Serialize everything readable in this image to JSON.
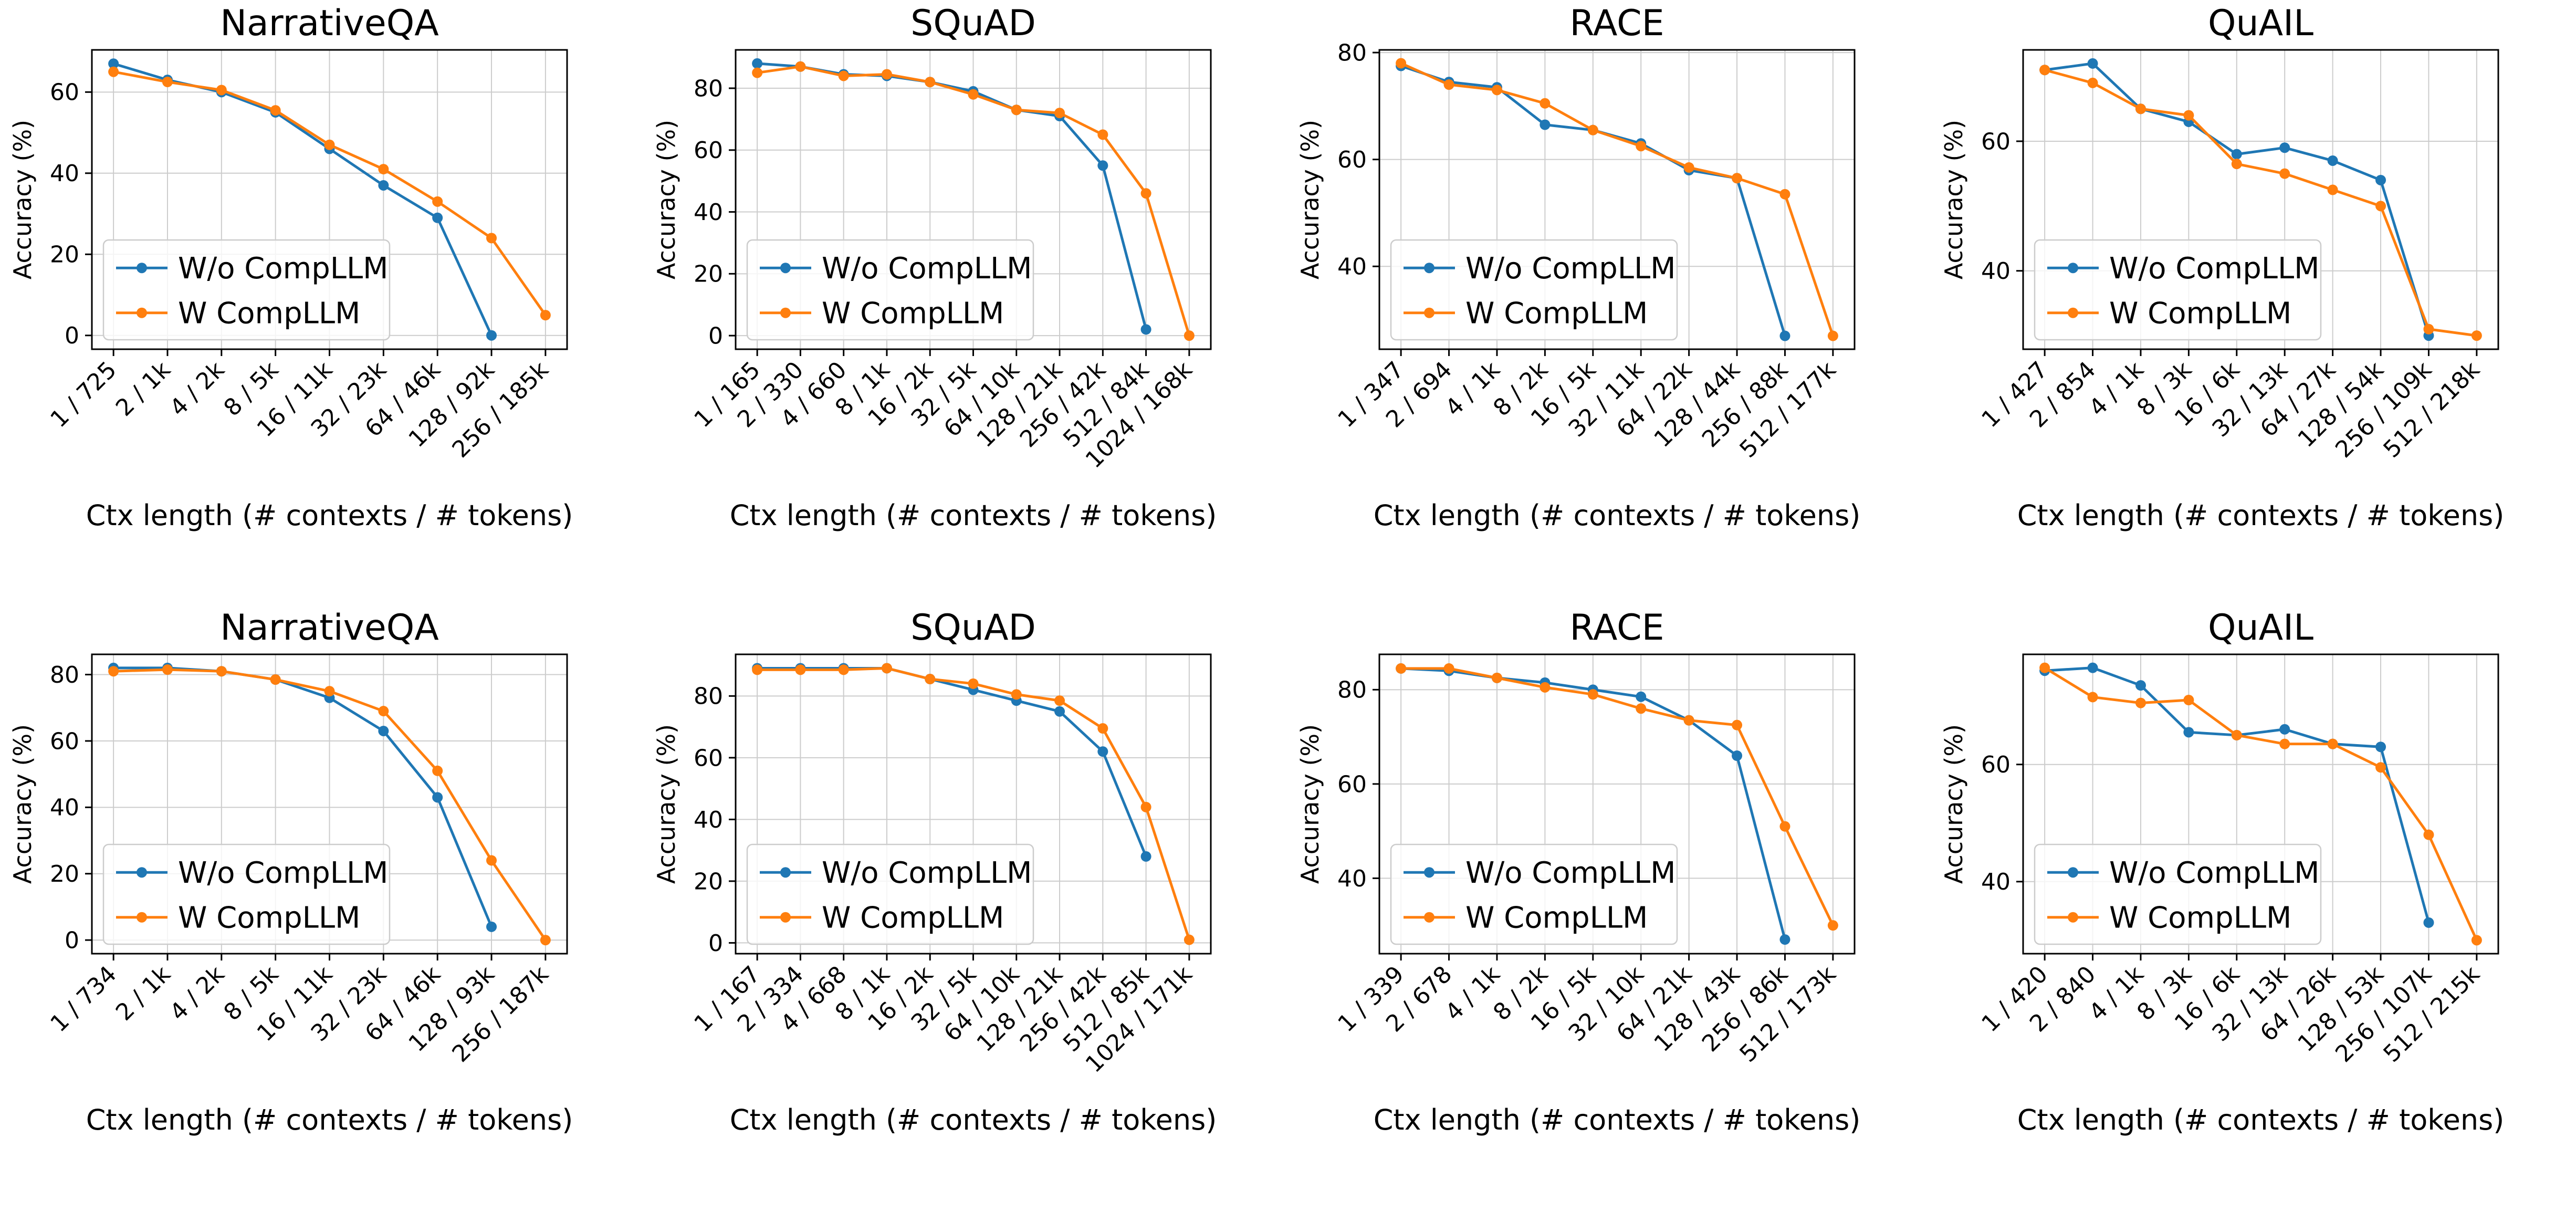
{
  "figure": {
    "rows": 2,
    "cols": 4,
    "background": "#ffffff",
    "grid_color": "#cccccc",
    "series_colors": {
      "without_compllm": "#1f77b4",
      "with_compllm": "#ff7f0e"
    },
    "legend_position": "lower left",
    "legend_labels": [
      "W/o CompLLM",
      "W CompLLM"
    ]
  },
  "chart_data": [
    {
      "type": "line",
      "title": "NarrativeQA",
      "xlabel": "Ctx length (# contexts / # tokens)",
      "ylabel": "Accuracy (%)",
      "grid": true,
      "legend_position": "lower left",
      "categories": [
        "1 / 725",
        "2 / 1k",
        "4 / 2k",
        "8 / 5k",
        "16 / 11k",
        "32 / 23k",
        "64 / 46k",
        "128 / 92k",
        "256 / 185k"
      ],
      "series": [
        {
          "name": "W/o CompLLM",
          "color": "#1f77b4",
          "values": [
            67,
            63,
            60,
            55,
            46,
            37,
            29,
            0,
            null
          ]
        },
        {
          "name": "W CompLLM",
          "color": "#ff7f0e",
          "values": [
            65,
            62.5,
            60.5,
            55.5,
            47,
            41,
            33,
            24,
            5
          ]
        }
      ],
      "yticks": [
        0,
        20,
        40,
        60
      ],
      "ylim": [
        -3.4,
        70.4
      ]
    },
    {
      "type": "line",
      "title": "SQuAD",
      "xlabel": "Ctx length (# contexts / # tokens)",
      "ylabel": "Accuracy (%)",
      "grid": true,
      "legend_position": "lower left",
      "categories": [
        "1 / 165",
        "2 / 330",
        "4 / 660",
        "8 / 1k",
        "16 / 2k",
        "32 / 5k",
        "64 / 10k",
        "128 / 21k",
        "256 / 42k",
        "512 / 84k",
        "1024 / 168k"
      ],
      "series": [
        {
          "name": "W/o CompLLM",
          "color": "#1f77b4",
          "values": [
            88,
            87,
            84.5,
            84,
            82,
            79,
            73,
            71,
            55,
            2,
            null
          ]
        },
        {
          "name": "W CompLLM",
          "color": "#ff7f0e",
          "values": [
            85,
            87,
            84,
            84.5,
            82,
            78,
            73,
            72,
            65,
            46,
            0
          ]
        }
      ],
      "yticks": [
        0,
        20,
        40,
        60,
        80
      ],
      "ylim": [
        -4.4,
        92.4
      ]
    },
    {
      "type": "line",
      "title": "RACE",
      "xlabel": "Ctx length (# contexts / # tokens)",
      "ylabel": "Accuracy (%)",
      "grid": true,
      "legend_position": "lower left",
      "categories": [
        "1 / 347",
        "2 / 694",
        "4 / 1k",
        "8 / 2k",
        "16 / 5k",
        "32 / 11k",
        "64 / 22k",
        "128 / 44k",
        "256 / 88k",
        "512 / 177k"
      ],
      "series": [
        {
          "name": "W/o CompLLM",
          "color": "#1f77b4",
          "values": [
            77.5,
            74.5,
            73.5,
            66.5,
            65.5,
            63,
            58,
            56.5,
            27,
            null
          ]
        },
        {
          "name": "W CompLLM",
          "color": "#ff7f0e",
          "values": [
            78,
            74,
            73,
            70.5,
            65.5,
            62.5,
            58.5,
            56.5,
            53.5,
            27
          ]
        }
      ],
      "yticks": [
        40,
        60,
        80
      ],
      "ylim": [
        24.5,
        80.5
      ]
    },
    {
      "type": "line",
      "title": "QuAIL",
      "xlabel": "Ctx length (# contexts / # tokens)",
      "ylabel": "Accuracy (%)",
      "grid": true,
      "legend_position": "lower left",
      "categories": [
        "1 / 427",
        "2 / 854",
        "4 / 1k",
        "8 / 3k",
        "16 / 6k",
        "32 / 13k",
        "64 / 27k",
        "128 / 54k",
        "256 / 109k",
        "512 / 218k"
      ],
      "series": [
        {
          "name": "W/o CompLLM",
          "color": "#1f77b4",
          "values": [
            71,
            72,
            65,
            63,
            58,
            59,
            57,
            54,
            30,
            null
          ]
        },
        {
          "name": "W CompLLM",
          "color": "#ff7f0e",
          "values": [
            71,
            69,
            65,
            64,
            56.5,
            55,
            52.5,
            50,
            31,
            30
          ]
        }
      ],
      "yticks": [
        40,
        60
      ],
      "ylim": [
        27.9,
        74.1
      ]
    },
    {
      "type": "line",
      "title": "NarrativeQA",
      "xlabel": "Ctx length (# contexts / # tokens)",
      "ylabel": "Accuracy (%)",
      "grid": true,
      "legend_position": "lower left",
      "categories": [
        "1 / 734",
        "2 / 1k",
        "4 / 2k",
        "8 / 5k",
        "16 / 11k",
        "32 / 23k",
        "64 / 46k",
        "128 / 93k",
        "256 / 187k"
      ],
      "series": [
        {
          "name": "W/o CompLLM",
          "color": "#1f77b4",
          "values": [
            82,
            82,
            81,
            78.5,
            73,
            63,
            43,
            4,
            null
          ]
        },
        {
          "name": "W CompLLM",
          "color": "#ff7f0e",
          "values": [
            81,
            81.5,
            81,
            78.5,
            75,
            69,
            51,
            24,
            0
          ]
        }
      ],
      "yticks": [
        0,
        20,
        40,
        60,
        80
      ],
      "ylim": [
        -4.1,
        86.1
      ]
    },
    {
      "type": "line",
      "title": "SQuAD",
      "xlabel": "Ctx length (# contexts / # tokens)",
      "ylabel": "Accuracy (%)",
      "grid": true,
      "legend_position": "lower left",
      "categories": [
        "1 / 167",
        "2 / 334",
        "4 / 668",
        "8 / 1k",
        "16 / 2k",
        "32 / 5k",
        "64 / 10k",
        "128 / 21k",
        "256 / 42k",
        "512 / 85k",
        "1024 / 171k"
      ],
      "series": [
        {
          "name": "W/o CompLLM",
          "color": "#1f77b4",
          "values": [
            89,
            89,
            89,
            89,
            85.5,
            82,
            78.5,
            75,
            62,
            28,
            null
          ]
        },
        {
          "name": "W CompLLM",
          "color": "#ff7f0e",
          "values": [
            88.5,
            88.5,
            88.5,
            89,
            85.5,
            84,
            80.5,
            78.5,
            69.5,
            44,
            1
          ]
        }
      ],
      "yticks": [
        0,
        20,
        40,
        60,
        80
      ],
      "ylim": [
        -3.5,
        93.5
      ]
    },
    {
      "type": "line",
      "title": "RACE",
      "xlabel": "Ctx length (# contexts / # tokens)",
      "ylabel": "Accuracy (%)",
      "grid": true,
      "legend_position": "lower left",
      "categories": [
        "1 / 339",
        "2 / 678",
        "4 / 1k",
        "8 / 2k",
        "16 / 5k",
        "32 / 10k",
        "64 / 21k",
        "128 / 43k",
        "256 / 86k",
        "512 / 173k"
      ],
      "series": [
        {
          "name": "W/o CompLLM",
          "color": "#1f77b4",
          "values": [
            84.5,
            84,
            82.5,
            81.5,
            80,
            78.5,
            73.5,
            66,
            27,
            null
          ]
        },
        {
          "name": "W CompLLM",
          "color": "#ff7f0e",
          "values": [
            84.5,
            84.5,
            82.5,
            80.5,
            79,
            76,
            73.5,
            72.5,
            51,
            30
          ]
        }
      ],
      "yticks": [
        40,
        60,
        80
      ],
      "ylim": [
        24,
        87.5
      ]
    },
    {
      "type": "line",
      "title": "QuAIL",
      "xlabel": "Ctx length (# contexts / # tokens)",
      "ylabel": "Accuracy (%)",
      "grid": true,
      "legend_position": "lower left",
      "categories": [
        "1 / 420",
        "2 / 840",
        "4 / 1k",
        "8 / 3k",
        "16 / 6k",
        "32 / 13k",
        "64 / 26k",
        "128 / 53k",
        "256 / 107k",
        "512 / 215k"
      ],
      "series": [
        {
          "name": "W/o CompLLM",
          "color": "#1f77b4",
          "values": [
            76,
            76.5,
            73.5,
            65.5,
            65,
            66,
            63.5,
            63,
            33,
            null
          ]
        },
        {
          "name": "W CompLLM",
          "color": "#ff7f0e",
          "values": [
            76.5,
            71.5,
            70.5,
            71,
            65,
            63.5,
            63.5,
            59.5,
            48,
            30
          ]
        }
      ],
      "yticks": [
        40,
        60
      ],
      "ylim": [
        27.7,
        78.8
      ]
    }
  ]
}
